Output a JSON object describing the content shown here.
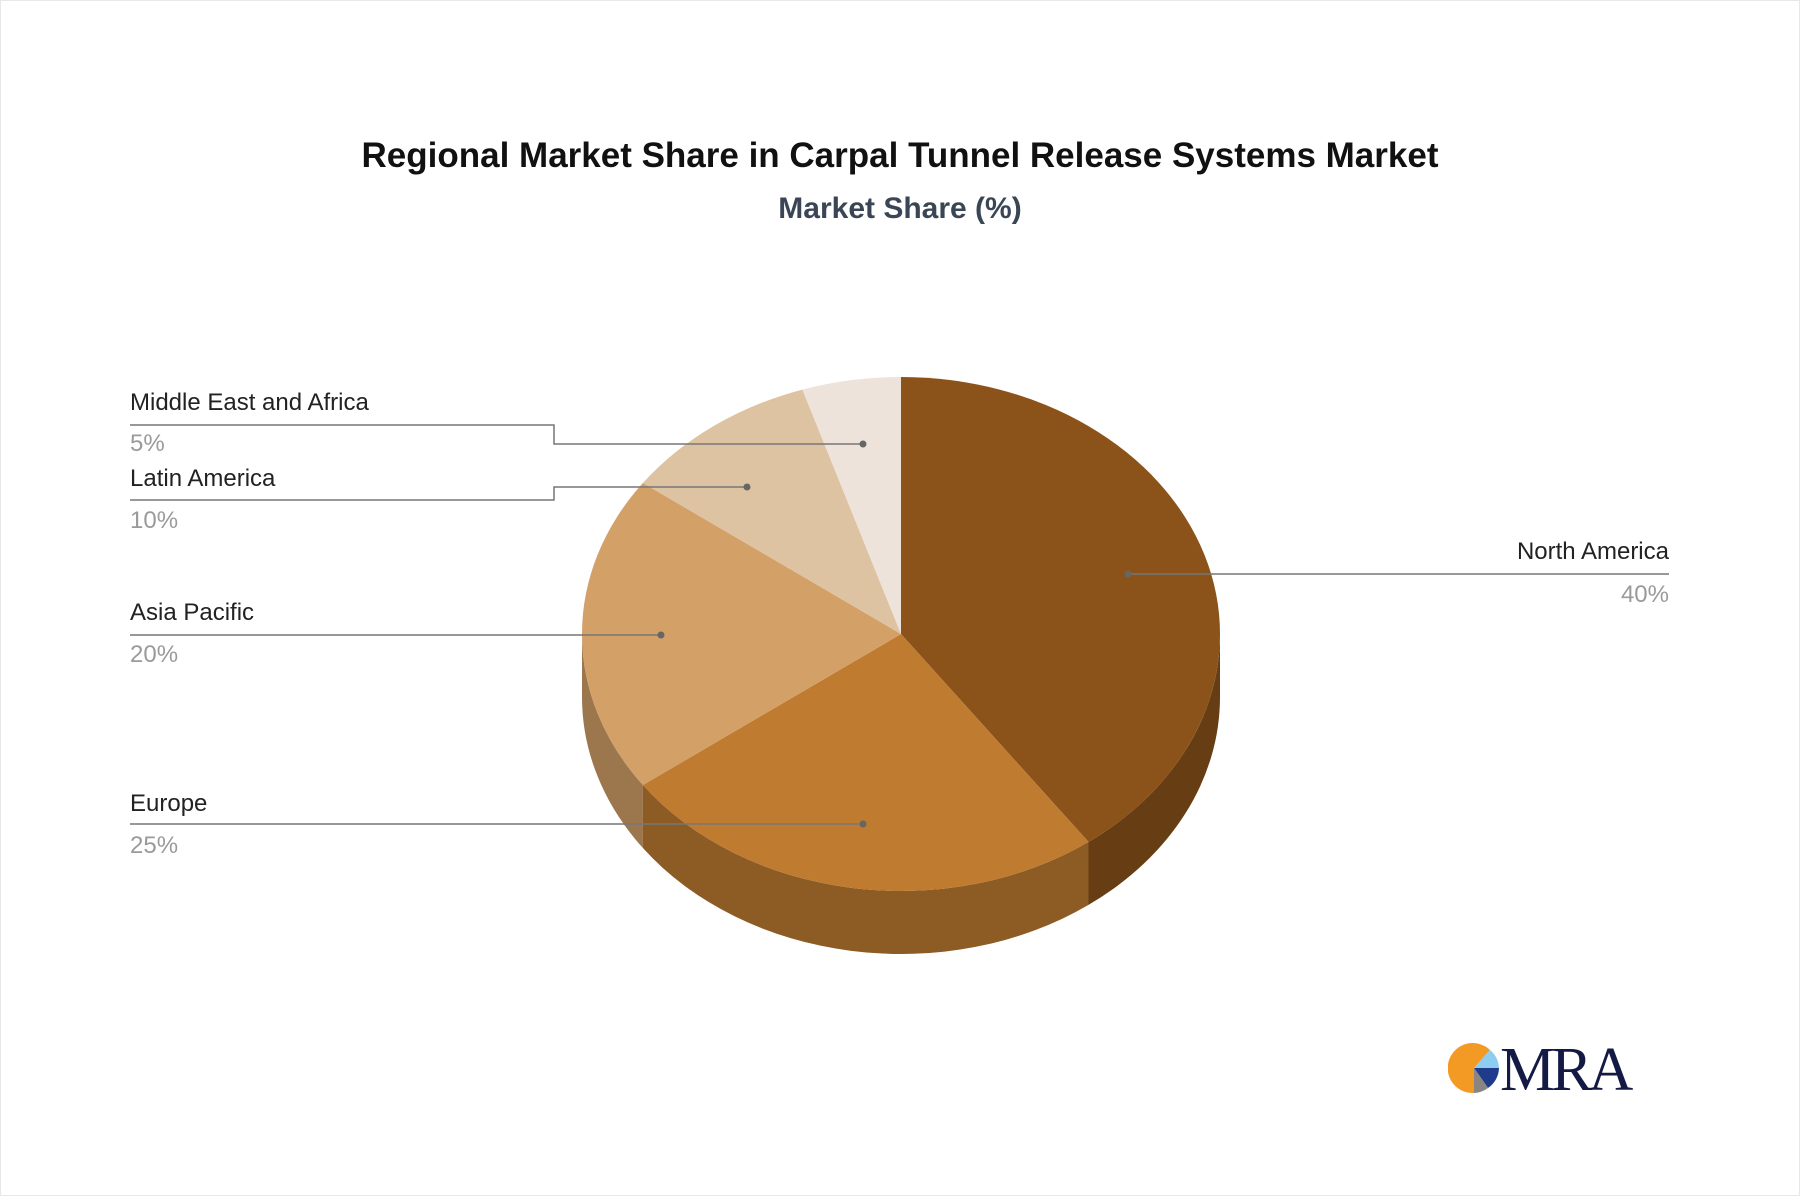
{
  "chart_data": {
    "type": "pie",
    "style": "3d",
    "title": "Regional Market Share in Carpal Tunnel Release Systems Market",
    "subtitle": "Market Share (%)",
    "slices": [
      {
        "label": "North America",
        "value": 40,
        "display": "40%",
        "color": "#8B5319"
      },
      {
        "label": "Europe",
        "value": 25,
        "display": "25%",
        "color": "#BF7B30"
      },
      {
        "label": "Asia Pacific",
        "value": 20,
        "display": "20%",
        "color": "#D3A067"
      },
      {
        "label": "Latin America",
        "value": 10,
        "display": "10%",
        "color": "#DEC3A2"
      },
      {
        "label": "Middle East and Africa",
        "value": 5,
        "display": "5%",
        "color": "#EDE3DB"
      }
    ]
  },
  "logo": {
    "text": "MRA",
    "colors": [
      "#F39A24",
      "#8DCDF0",
      "#1F3C8C",
      "#8A8580",
      "#151A45"
    ]
  }
}
